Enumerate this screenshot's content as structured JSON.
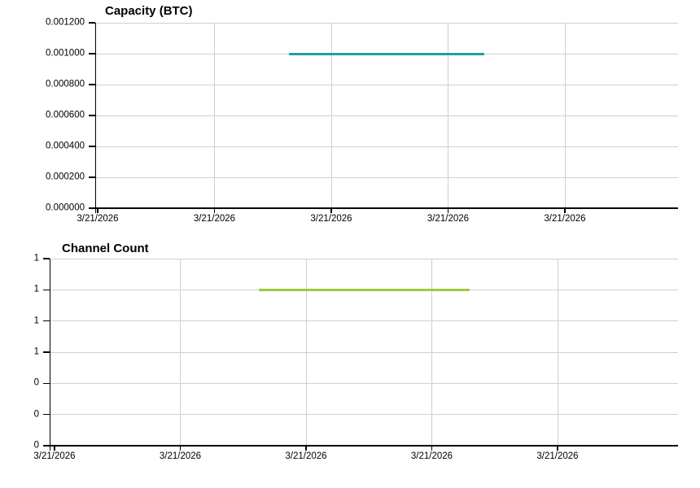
{
  "colors": {
    "background": "#FFFFFF",
    "grid_line": "#CFCFCF",
    "axis_line": "#000000",
    "text": "#000000",
    "capacity_series": "#1E9EA4",
    "channel_count_series": "#9CCB3B"
  },
  "chart_data": [
    {
      "type": "line",
      "title": "Capacity (BTC)",
      "xlabel": "",
      "ylabel": "",
      "grid": true,
      "legend": "none",
      "ylim": [
        0,
        0.0012
      ],
      "y_tick_labels": [
        "0.001200",
        "0.001000",
        "0.000800",
        "0.000600",
        "0.000400",
        "0.000200",
        "0.000000"
      ],
      "x_tick_labels": [
        "3/21/2026",
        "3/21/2026",
        "3/21/2026",
        "3/21/2026",
        "3/21/2026"
      ],
      "series": [
        {
          "name": "Capacity (BTC)",
          "color": "#1E9EA4",
          "value": 0.001,
          "x_span_frac": [
            0.3315,
            0.667
          ],
          "points": [
            {
              "x": "3/21/2026",
              "y": 0.001
            },
            {
              "x": "3/21/2026",
              "y": 0.001
            }
          ]
        }
      ]
    },
    {
      "type": "line",
      "title": "Channel Count",
      "xlabel": "",
      "ylabel": "",
      "grid": true,
      "legend": "none",
      "ylim": [
        0,
        1.2
      ],
      "y_tick_labels": [
        "1",
        "1",
        "1",
        "1",
        "0",
        "0",
        "0"
      ],
      "x_tick_labels": [
        "3/21/2026",
        "3/21/2026",
        "3/21/2026",
        "3/21/2026",
        "3/21/2026"
      ],
      "series": [
        {
          "name": "Channel Count",
          "color": "#9CCB3B",
          "value": 1,
          "x_span_frac": [
            0.332,
            0.668
          ],
          "points": [
            {
              "x": "3/21/2026",
              "y": 1
            },
            {
              "x": "3/21/2026",
              "y": 1
            }
          ]
        }
      ]
    }
  ]
}
